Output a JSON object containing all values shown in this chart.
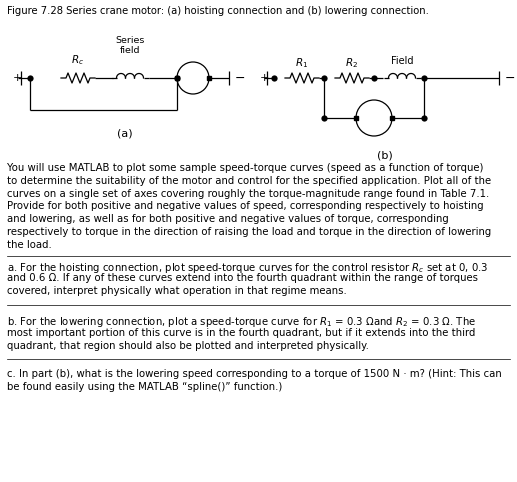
{
  "title": "Figure 7.28 Series crane motor: (a) hoisting connection and (b) lowering connection.",
  "background_color": "#ffffff",
  "figsize": [
    5.17,
    4.82
  ],
  "dpi": 100,
  "circuit_a_label": "(a)",
  "circuit_b_label": "(b)",
  "Re_label": "R_c",
  "R1_label": "R_1",
  "R2_label": "R_2",
  "field_label": "Field",
  "para1": "You will use MATLAB to plot some sample speed-torque curves (speed as a function of torque) to determine the suitability of the motor and control for the specified application. Plot all of the curves on a single set of axes covering roughly the torque-magnitude range found in Table 7.1. Provide for both positive and negative values of speed, corresponding respectively to hoisting and lowering, as well as for both positive and negative values of torque, corresponding respectively to torque in the direction of raising the load and torque in the direction of lowering the load.",
  "para_a_full": "a. For the hoisting connection, plot speed-torque curves for the control resistor R_c set at 0, 0.3 and 0.6 Ω. If any of these curves extend into the fourth quadrant within the range of torques covered, interpret physically what operation in that regime means.",
  "para_b_full": "b. For the lowering connection, plot a speed-torque curve for R_1 = 0.3 Ωand R_2 = 0.3 Ω. The most important portion of this curve is in the fourth quadrant, but if it extends into the third quadrant, that region should also be plotted and interpreted physically.",
  "para_c_full": "c. In part (b), what is the lowering speed corresponding to a torque of 1500 N · m? (Hint: This can be found easily using the MATLAB “spline()” function.)"
}
